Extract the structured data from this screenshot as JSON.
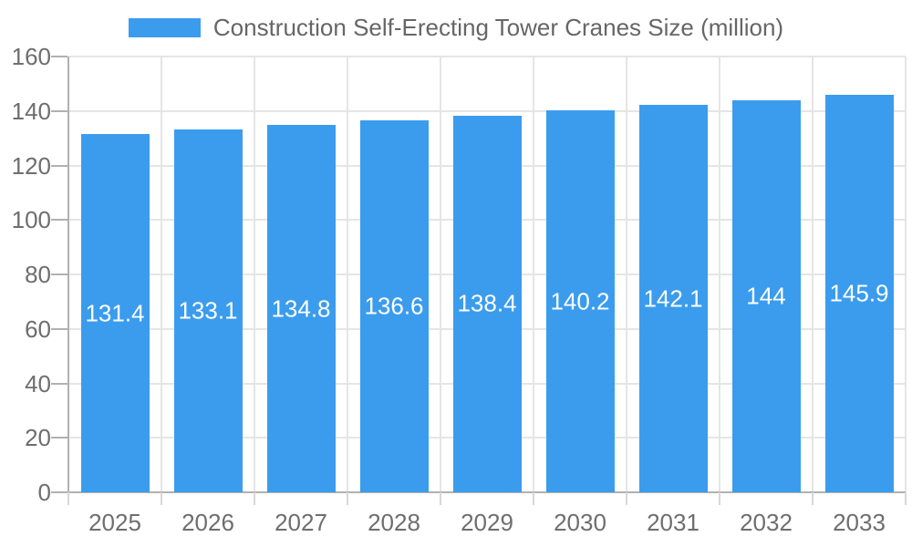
{
  "chart_data": {
    "type": "bar",
    "title": "Construction Self-Erecting Tower Cranes Size (million)",
    "categories": [
      "2025",
      "2026",
      "2027",
      "2028",
      "2029",
      "2030",
      "2031",
      "2032",
      "2033"
    ],
    "series": [
      {
        "name": "Construction Self-Erecting Tower Cranes Size (million)",
        "values": [
          131.4,
          133.1,
          134.8,
          136.6,
          138.4,
          140.2,
          142.1,
          144,
          145.9
        ]
      }
    ],
    "value_labels_shown": true,
    "ylim": [
      0,
      160
    ],
    "yticks": [
      0,
      20,
      40,
      60,
      80,
      100,
      120,
      140,
      160
    ],
    "grid": true,
    "legend_position": "top",
    "colors": {
      "bar": "#3B9CED",
      "value_label": "#FFFFFF",
      "legend_text": "#666666",
      "tick_text": "#6E6E6E",
      "grid_line": "#E5E5E5",
      "axis_line": "#B1B1B1",
      "y_tick_line": "#B1B1B1",
      "x_tick_line": "#D8D8D8",
      "background": "#FFFFFF"
    }
  }
}
